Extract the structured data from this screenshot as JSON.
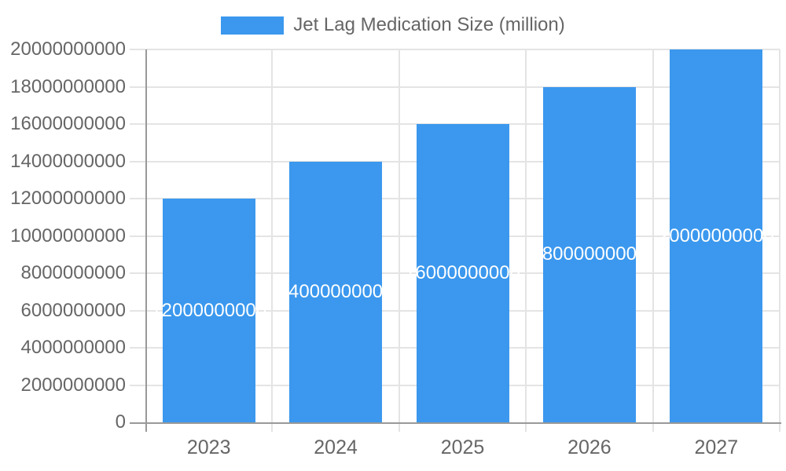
{
  "chart_data": {
    "type": "bar",
    "title": "Jet Lag Medication Size (million)",
    "legend_label": "Jet Lag Medication Size (million)",
    "legend_position": "top",
    "categories": [
      "2023",
      "2024",
      "2025",
      "2026",
      "2027"
    ],
    "series": [
      {
        "name": "Jet Lag Medication Size (million)",
        "values": [
          12000000000,
          14000000000,
          16000000000,
          18000000000,
          20000000000
        ]
      }
    ],
    "value_labels": [
      "12000000000",
      "14000000000",
      "16000000000",
      "18000000000",
      "20000000000"
    ],
    "xlabel": "",
    "ylabel": "",
    "ylim": [
      0,
      20000000000
    ],
    "y_tick_step": 2000000000,
    "y_tick_labels": [
      "0",
      "2000000000",
      "4000000000",
      "6000000000",
      "8000000000",
      "10000000000",
      "12000000000",
      "14000000000",
      "16000000000",
      "18000000000",
      "20000000000"
    ],
    "grid": "both",
    "colors": {
      "series": "#3B98EE",
      "grid": "#E4E4E4",
      "axis": "#999999",
      "text": "#666666",
      "value_label": "#FFFFFF",
      "background": "#FFFFFF"
    }
  }
}
